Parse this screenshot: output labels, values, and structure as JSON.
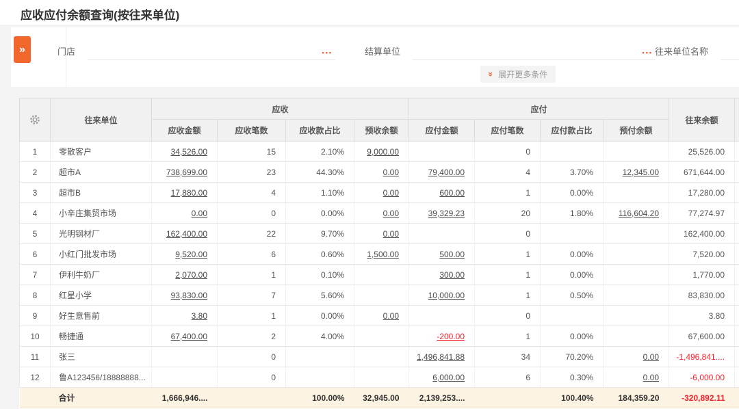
{
  "page_title": "应收应付余额查询(按往来单位)",
  "icons": {
    "collapse": "»",
    "expand_more": "»",
    "picker_dots": "•••"
  },
  "colors": {
    "accent_orange": "#f2672b",
    "negative_red": "#f5222d",
    "total_row_bg": "#fdf3e3"
  },
  "filters": {
    "fields": [
      {
        "label": "门店",
        "value": "",
        "has_picker": true
      },
      {
        "label": "结算单位",
        "value": "",
        "has_picker": true
      },
      {
        "label": "往来单位名称",
        "value": "",
        "has_picker": false
      }
    ],
    "expand_more_label": "展开更多条件"
  },
  "table": {
    "header": {
      "partner": "往来单位",
      "receivable_group": "应收",
      "payable_group": "应付",
      "balance": "往来余额",
      "receivable_cols": [
        "应收金额",
        "应收笔数",
        "应收款占比",
        "预收余额"
      ],
      "payable_cols": [
        "应付金额",
        "应付笔数",
        "应付款占比",
        "预付余额"
      ]
    },
    "rows": [
      {
        "no": "1",
        "partner": "零散客户",
        "ys_je": "34,526.00",
        "ys_bs": "15",
        "ys_zb": "2.10%",
        "ysh": "9,000.00",
        "yf_je": "",
        "yf_bs": "0",
        "yf_zb": "",
        "yfh": "",
        "ye": "25,526.00"
      },
      {
        "no": "2",
        "partner": "超市A",
        "ys_je": "738,699.00",
        "ys_bs": "23",
        "ys_zb": "44.30%",
        "ysh": "0.00",
        "yf_je": "79,400.00",
        "yf_bs": "4",
        "yf_zb": "3.70%",
        "yfh": "12,345.00",
        "ye": "671,644.00"
      },
      {
        "no": "3",
        "partner": "超市B",
        "ys_je": "17,880.00",
        "ys_bs": "4",
        "ys_zb": "1.10%",
        "ysh": "0.00",
        "yf_je": "600.00",
        "yf_bs": "1",
        "yf_zb": "0.00%",
        "yfh": "",
        "ye": "17,280.00"
      },
      {
        "no": "4",
        "partner": "小辛庄集贸市场",
        "ys_je": "0.00",
        "ys_bs": "0",
        "ys_zb": "0.00%",
        "ysh": "0.00",
        "yf_je": "39,329.23",
        "yf_bs": "20",
        "yf_zb": "1.80%",
        "yfh": "116,604.20",
        "ye": "77,274.97"
      },
      {
        "no": "5",
        "partner": "光明钢材厂",
        "ys_je": "162,400.00",
        "ys_bs": "22",
        "ys_zb": "9.70%",
        "ysh": "0.00",
        "yf_je": "",
        "yf_bs": "0",
        "yf_zb": "",
        "yfh": "",
        "ye": "162,400.00"
      },
      {
        "no": "6",
        "partner": "小红门批发市场",
        "ys_je": "9,520.00",
        "ys_bs": "6",
        "ys_zb": "0.60%",
        "ysh": "1,500.00",
        "yf_je": "500.00",
        "yf_bs": "1",
        "yf_zb": "0.00%",
        "yfh": "",
        "ye": "7,520.00"
      },
      {
        "no": "7",
        "partner": "伊利牛奶厂",
        "ys_je": "2,070.00",
        "ys_bs": "1",
        "ys_zb": "0.10%",
        "ysh": "",
        "yf_je": "300.00",
        "yf_bs": "1",
        "yf_zb": "0.00%",
        "yfh": "",
        "ye": "1,770.00"
      },
      {
        "no": "8",
        "partner": "红星小学",
        "ys_je": "93,830.00",
        "ys_bs": "7",
        "ys_zb": "5.60%",
        "ysh": "",
        "yf_je": "10,000.00",
        "yf_bs": "1",
        "yf_zb": "0.50%",
        "yfh": "",
        "ye": "83,830.00"
      },
      {
        "no": "9",
        "partner": "好生意售前",
        "ys_je": "3.80",
        "ys_bs": "1",
        "ys_zb": "0.00%",
        "ysh": "0.00",
        "yf_je": "",
        "yf_bs": "0",
        "yf_zb": "",
        "yfh": "",
        "ye": "3.80"
      },
      {
        "no": "10",
        "partner": "畅捷通",
        "ys_je": "67,400.00",
        "ys_bs": "2",
        "ys_zb": "4.00%",
        "ysh": "",
        "yf_je": "-200.00",
        "yf_bs": "1",
        "yf_zb": "0.00%",
        "yfh": "",
        "ye": "67,600.00"
      },
      {
        "no": "11",
        "partner": "张三",
        "ys_je": "",
        "ys_bs": "0",
        "ys_zb": "",
        "ysh": "",
        "yf_je": "1,496,841.88",
        "yf_bs": "34",
        "yf_zb": "70.20%",
        "yfh": "0.00",
        "ye": "-1,496,841...."
      },
      {
        "no": "12",
        "partner": "鲁A123456/18888888...",
        "ys_je": "",
        "ys_bs": "0",
        "ys_zb": "",
        "ysh": "",
        "yf_je": "6,000.00",
        "yf_bs": "6",
        "yf_zb": "0.30%",
        "yfh": "0.00",
        "ye": "-6,000.00"
      }
    ],
    "total": {
      "no": "",
      "partner": "合计",
      "ys_je": "1,666,946....",
      "ys_bs": "",
      "ys_zb": "100.00%",
      "ysh": "32,945.00",
      "yf_je": "2,139,253....",
      "yf_bs": "",
      "yf_zb": "100.40%",
      "yfh": "184,359.20",
      "ye": "-320,892.11"
    }
  }
}
